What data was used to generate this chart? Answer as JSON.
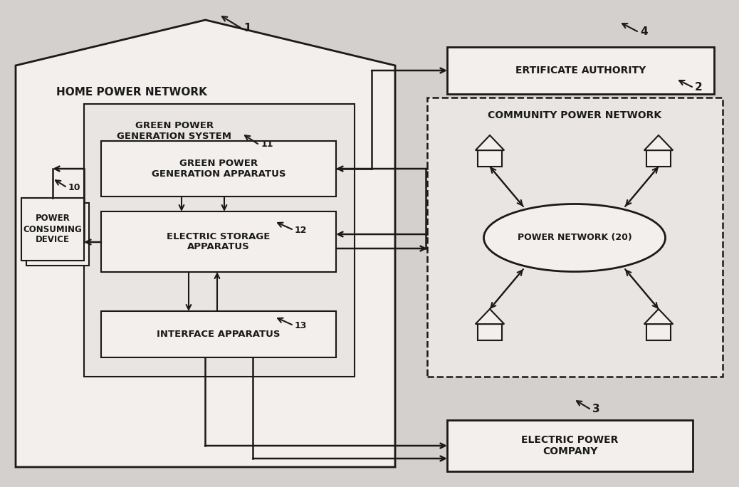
{
  "bg_color": "#d3d0cd",
  "line_color": "#1a1a1a",
  "inner_fill": "#e8e5e2",
  "white_fill": "#f2efec",
  "title": "HOME POWER NETWORK",
  "cert_text": "ERTIFICATE AUTHORITY",
  "epc_text": "ELECTRIC POWER\nCOMPANY",
  "community_title": "COMMUNITY POWER NETWORK",
  "pn_text": "POWER NETWORK (20)",
  "green_sys_title": "GREEN POWER\nGENERATION SYSTEM",
  "green_gen_text": "GREEN POWER\nGENERATION APPARATUS",
  "storage_text": "ELECTRIC STORAGE\nAPPARATUS",
  "interface_text": "INTERFACE APPARATUS",
  "power_consuming_text": "POWER\nCONSUMING\nDEVICE",
  "label_1": "1",
  "label_2": "2",
  "label_3": "3",
  "label_4": "4",
  "label_10": "10",
  "label_11": "11",
  "label_12": "12",
  "label_13": "13"
}
